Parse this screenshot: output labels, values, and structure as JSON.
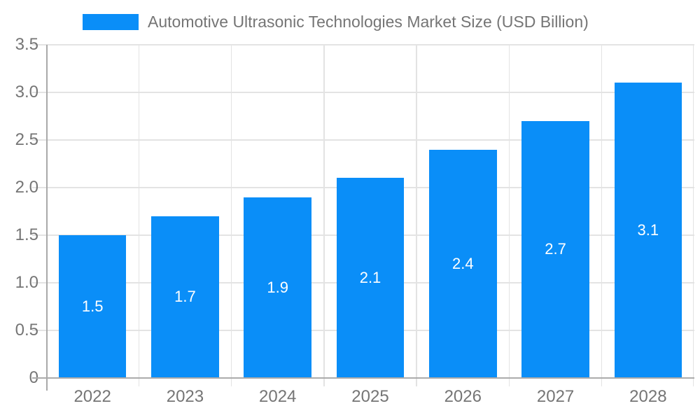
{
  "chart_data": {
    "type": "bar",
    "title": "Automotive Ultrasonic Technologies Market Size (USD Billion)",
    "categories": [
      "2022",
      "2023",
      "2024",
      "2025",
      "2026",
      "2027",
      "2028"
    ],
    "values": [
      1.5,
      1.7,
      1.9,
      2.1,
      2.4,
      2.7,
      3.1
    ],
    "value_labels": [
      "1.5",
      "1.7",
      "1.9",
      "2.1",
      "2.4",
      "2.7",
      "3.1"
    ],
    "xlabel": "",
    "ylabel": "",
    "ylim": [
      0,
      3.5
    ],
    "ytick_step": 0.5,
    "ytick_labels_top_to_bottom": [
      "3.5",
      "3.0",
      "2.5",
      "2.0",
      "1.5",
      "1.0",
      "0.5",
      "0"
    ],
    "grid": true,
    "legend_position": "top",
    "bar_label_position": "inside-center"
  },
  "colors": {
    "bar": "#0a8ef8",
    "bar_value_label": "#ffffff",
    "title_text": "#757575",
    "tick_text": "#757575",
    "gridline": "#e3e3e3",
    "axis_line": "#a9a9a9",
    "background": "#ffffff"
  }
}
